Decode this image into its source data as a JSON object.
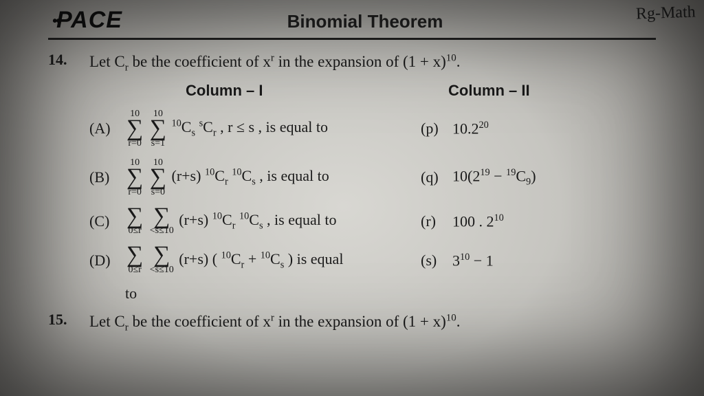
{
  "background_colors": {
    "center": "#d8d7d2",
    "edge": "#3a3836"
  },
  "text_color": "#1a1a1a",
  "rule_color": "#222222",
  "header": {
    "logo_text": "PACE",
    "chapter": "Binomial Theorem",
    "corner": "Rg-Math"
  },
  "q14": {
    "number": "14.",
    "text_prefix": "Let C",
    "text_mid1": " be the coefficient of x",
    "text_mid2": " in the expansion of (1 + x)",
    "text_suffix": ".",
    "sub_r": "r",
    "sup_r": "r",
    "sup_10": "10",
    "col1_head": "Column – I",
    "col2_head": "Column – II",
    "A": {
      "label": "(A)",
      "sum1_top": "10",
      "sum1_bot": "r=0",
      "sum2_top": "10",
      "sum2_bot": "s=1",
      "body_html": "<sup>10</sup>C<sub>s</sub> <sup>s</sup>C<sub>r</sub> , r ≤ s , is equal to"
    },
    "B": {
      "label": "(B)",
      "sum1_top": "10",
      "sum1_bot": "r=0",
      "sum2_top": "10",
      "sum2_bot": "s=0",
      "body_html": "(r+s) <sup>10</sup>C<sub>r</sub> <sup>10</sup>C<sub>s</sub> , is equal to"
    },
    "C": {
      "label": "(C)",
      "sum1_top": "",
      "sum1_bot": "0≤r",
      "sum2_top": "",
      "sum2_bot": "<s≤10",
      "body_html": "(r+s) <sup>10</sup>C<sub>r</sub> <sup>10</sup>C<sub>s</sub> , is equal to"
    },
    "D": {
      "label": "(D)",
      "sum1_top": "",
      "sum1_bot": "0≤r",
      "sum2_top": "",
      "sum2_bot": "<s≤10",
      "body_html": "(r+s) ( <sup>10</sup>C<sub>r</sub> + <sup>10</sup>C<sub>s</sub> ) is equal",
      "tail": "to"
    },
    "p": {
      "label": "(p)",
      "value_html": "10.2<sup>20</sup>"
    },
    "q": {
      "label": "(q)",
      "value_html": "10(2<sup>19</sup> − <sup>19</sup>C<sub>9</sub>)"
    },
    "r": {
      "label": "(r)",
      "value_html": "100 . 2<sup>10</sup>"
    },
    "s": {
      "label": "(s)",
      "value_html": "3<sup>10</sup> − 1"
    }
  },
  "q15": {
    "number": "15.",
    "text_prefix": "Let C",
    "text_mid1": " be the coefficient of x",
    "text_mid2": " in the expansion of (1 + x)",
    "text_suffix": ".",
    "sub_r": "r",
    "sup_r": "r",
    "sup_10": "10"
  }
}
